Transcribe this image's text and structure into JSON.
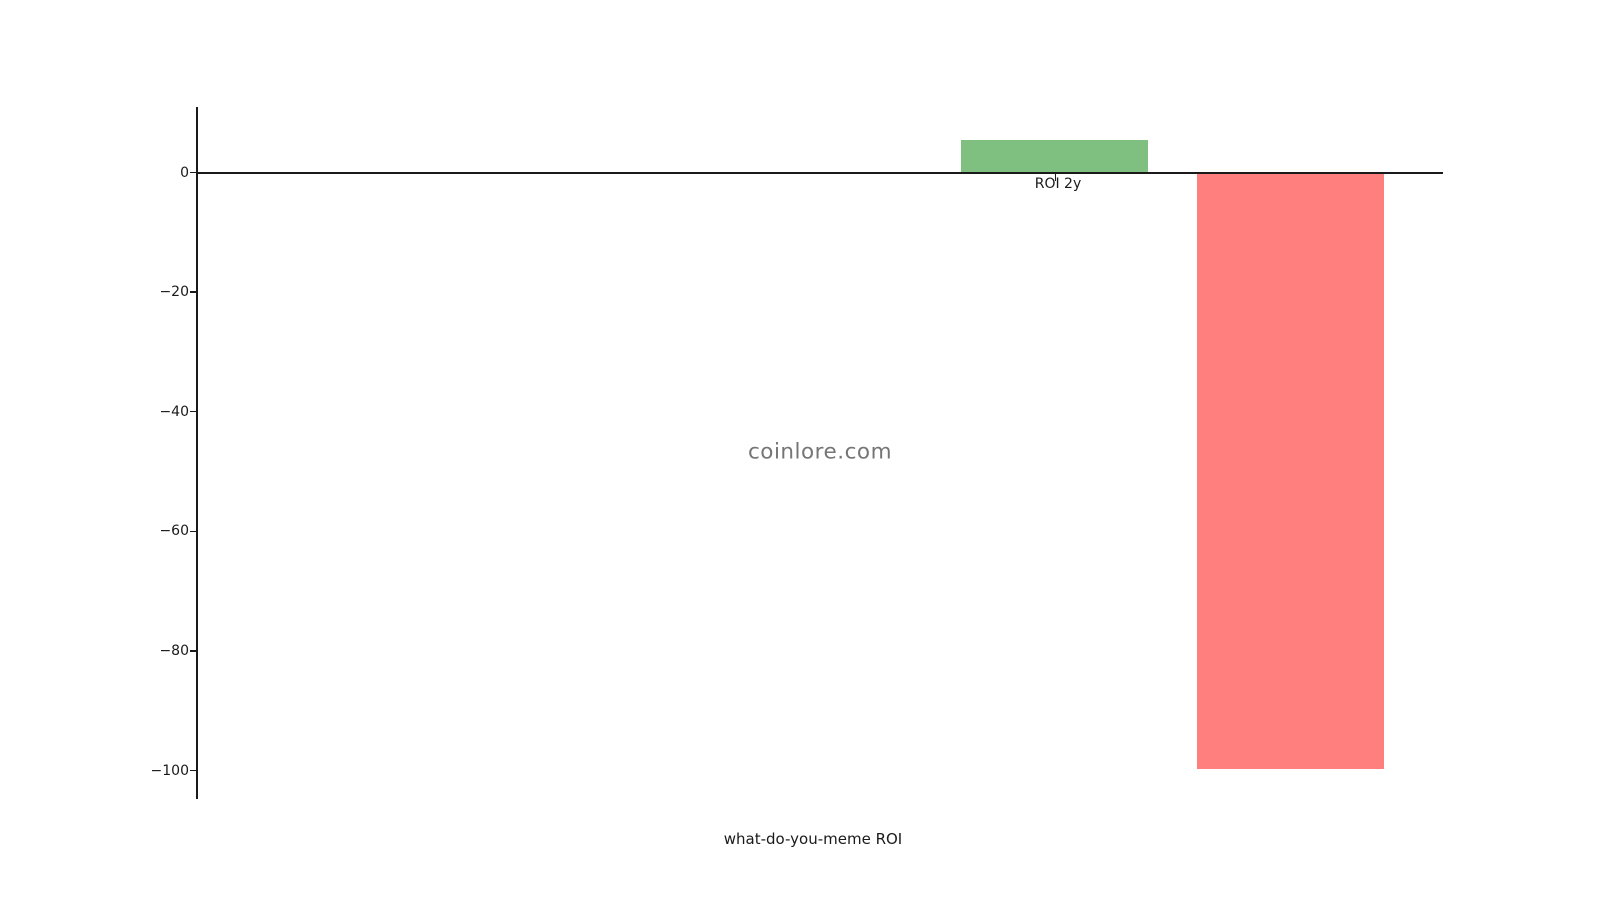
{
  "chart_data": {
    "type": "bar",
    "title": "",
    "xlabel": "what-do-you-meme ROI",
    "ylabel": "",
    "watermark": "coinlore.com",
    "categories": [
      "ROI 2y",
      ""
    ],
    "values": [
      5.5,
      -99.8
    ],
    "bar_colors": [
      "#7fbf7f",
      "#ff7f7f"
    ],
    "yticks": [
      0,
      -20,
      -40,
      -60,
      -80,
      -100
    ],
    "ytick_labels": [
      "0",
      "−20",
      "−40",
      "−60",
      "−80",
      "−100"
    ],
    "ylim": [
      -105,
      11
    ],
    "grid": false,
    "legend": false,
    "axis_color": "#1a1a1a",
    "text_color": "#1a1a1a",
    "watermark_color": "#757575"
  }
}
